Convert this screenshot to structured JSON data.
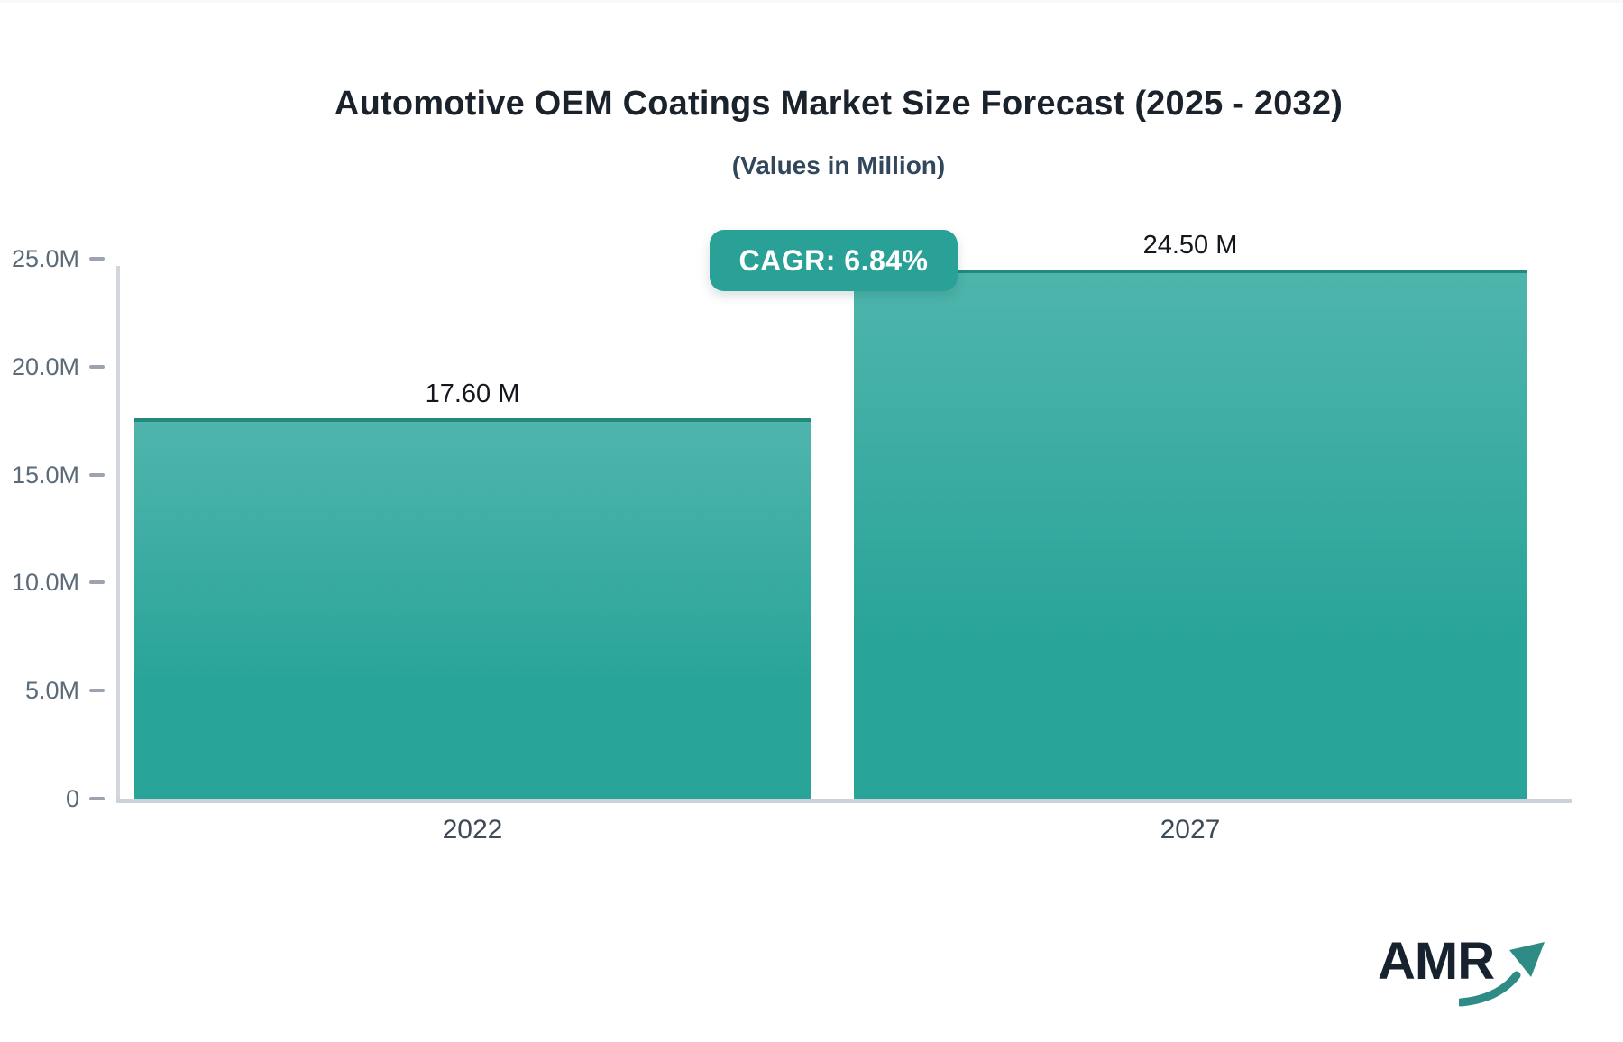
{
  "header": {
    "title": "Automotive OEM Coatings Market Size Forecast (2025 - 2032)",
    "subtitle": "(Values in Million)"
  },
  "chart_data": {
    "type": "bar",
    "title": "Automotive OEM Coatings Market Size Forecast (2025 - 2032)",
    "subtitle": "(Values in Million)",
    "unit": "Million",
    "categories": [
      "2022",
      "2027"
    ],
    "values": [
      17.6,
      24.5
    ],
    "value_labels": [
      "17.60 M",
      "24.50 M"
    ],
    "cagr_label": "CAGR: 6.84%",
    "cagr_value": "6.84%",
    "ylim": [
      0,
      25
    ],
    "ytick_values": [
      25,
      20,
      15,
      10,
      5,
      0
    ],
    "ytick_labels": [
      "25.0M",
      "20.0M",
      "15.0M",
      "10.0M",
      "5.0M",
      "0"
    ],
    "grid": false,
    "legend_position": "none",
    "bar_color_top": "#4fb5ac",
    "bar_color_bottom": "#29a498",
    "bar_border_color": "#218a7c"
  },
  "logo": {
    "text": "AMR",
    "arrow_icon": "trend-up-arrow-icon",
    "text_color": "#16222e",
    "arrow_color": "#2f8b85"
  },
  "colors": {
    "accent_teal": "#2aa197",
    "axis_line": "#d2d6de",
    "baseline": "#ccd2d9",
    "tick_dash": "#9aa3ae",
    "y_label": "#5b6b7a",
    "x_label": "#3e4a57",
    "title_text": "#1a222c",
    "subtitle_text": "#33475c",
    "badge_text": "#ffffff"
  }
}
